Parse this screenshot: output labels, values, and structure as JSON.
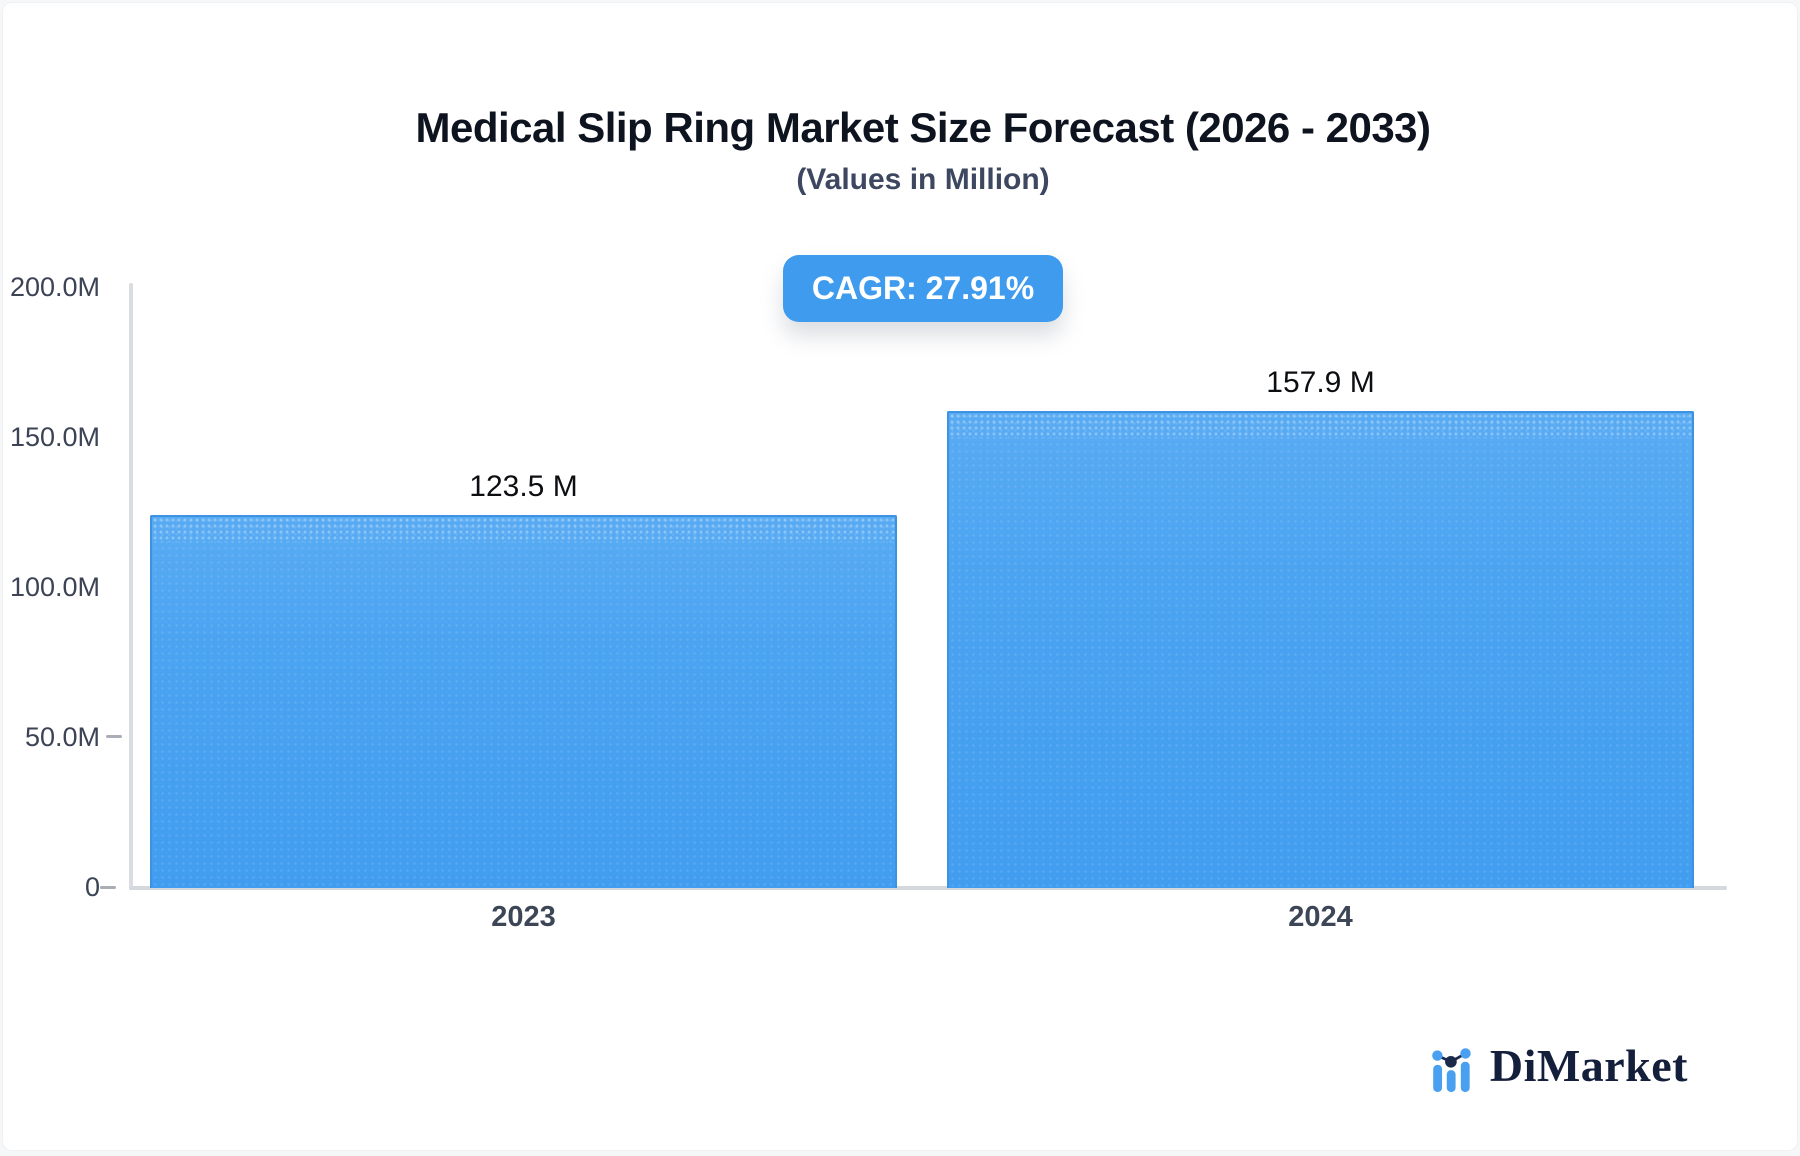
{
  "title": "Medical Slip Ring Market Size Forecast (2026 - 2033)",
  "subtitle": "(Values in Million)",
  "badge": {
    "label": "CAGR: 27.91%"
  },
  "chart_data": {
    "type": "bar",
    "categories": [
      "2023",
      "2024"
    ],
    "values": [
      123.5,
      157.9
    ],
    "value_labels": [
      "123.5 M",
      "157.9 M"
    ],
    "unit": "Million",
    "y_ticks": [
      "200.0M",
      "150.0M",
      "100.0M",
      "50.0M",
      "0"
    ],
    "ylim": [
      0,
      200
    ],
    "grid": false,
    "legend": false,
    "bar_fill_top": "#59abf3",
    "bar_fill_bottom": "#429df0",
    "bar_border": "#3e92e2",
    "badge_color": "#3f9bee",
    "axis_color": "#d9dce0",
    "label_color": "#3b4354"
  },
  "logo": {
    "text": "DiMarket",
    "icon_blue": "#4aa0f0",
    "icon_navy": "#1b2a4a"
  }
}
